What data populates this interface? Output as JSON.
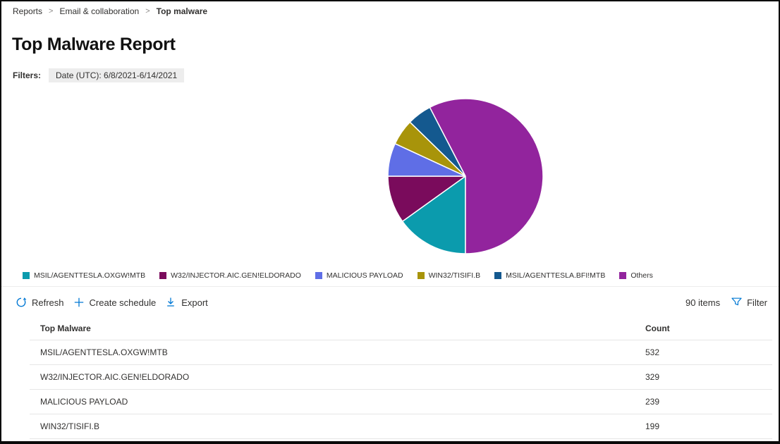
{
  "breadcrumb": {
    "separator": ">",
    "items": [
      {
        "label": "Reports"
      },
      {
        "label": "Email & collaboration"
      },
      {
        "label": "Top malware"
      }
    ]
  },
  "page": {
    "title": "Top Malware Report"
  },
  "filters": {
    "label": "Filters:",
    "date_chip": "Date (UTC): 6/8/2021-6/14/2021"
  },
  "chart_data": {
    "type": "pie",
    "title": "",
    "legend_position": "bottom",
    "start_angle_deg": 180,
    "direction": "clockwise",
    "slices": [
      {
        "label": "MSIL/AGENTTESLA.OXGW!MTB",
        "color": "#0b9bad",
        "percent": 15.1,
        "count": 532
      },
      {
        "label": "W32/INJECTOR.AIC.GEN!ELDORADO",
        "color": "#7a0b5c",
        "percent": 9.9,
        "count": 329
      },
      {
        "label": "MALICIOUS PAYLOAD",
        "color": "#5f6ee6",
        "percent": 6.9,
        "count": 239
      },
      {
        "label": "WIN32/TISIFI.B",
        "color": "#a8940a",
        "percent": 5.4,
        "count": 199
      },
      {
        "label": "MSIL/AGENTTESLA.BFI!MTB",
        "color": "#14598f",
        "percent": 5.1
      },
      {
        "label": "Others",
        "color": "#92249d",
        "percent": 57.6
      }
    ]
  },
  "toolbar": {
    "refresh_label": "Refresh",
    "create_schedule_label": "Create schedule",
    "export_label": "Export",
    "items_count": "90 items",
    "filter_label": "Filter"
  },
  "table": {
    "columns": [
      "Top Malware",
      "Count"
    ],
    "rows": [
      [
        "MSIL/AGENTTESLA.OXGW!MTB",
        "532"
      ],
      [
        "W32/INJECTOR.AIC.GEN!ELDORADO",
        "329"
      ],
      [
        "MALICIOUS PAYLOAD",
        "239"
      ],
      [
        "WIN32/TISIFI.B",
        "199"
      ]
    ]
  },
  "colors": {
    "accent": "#0078d4",
    "text": "#323130",
    "chip_bg": "#ededed",
    "divider": "#e6e6e6"
  }
}
